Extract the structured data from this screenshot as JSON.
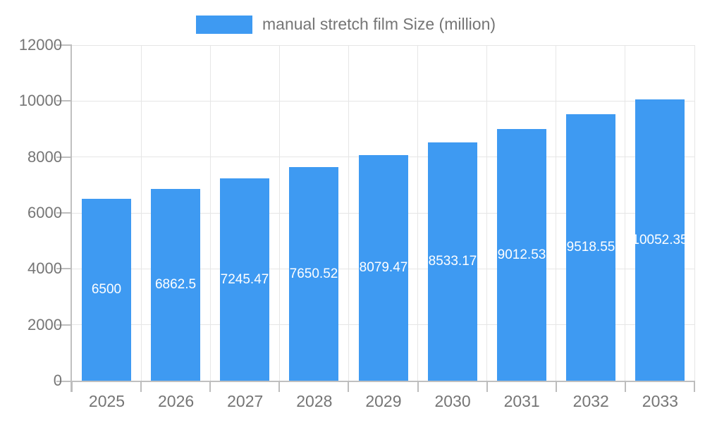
{
  "chart_data": {
    "type": "bar",
    "title": "",
    "legend_label": "manual stretch film Size (million)",
    "legend_position": "top",
    "categories": [
      "2025",
      "2026",
      "2027",
      "2028",
      "2029",
      "2030",
      "2031",
      "2032",
      "2033"
    ],
    "series": [
      {
        "name": "manual stretch film Size (million)",
        "values": [
          6500,
          6862.5,
          7245.47,
          7650.52,
          8079.47,
          8533.17,
          9012.53,
          9518.55,
          10052.35
        ]
      }
    ],
    "xlabel": "",
    "ylabel": "",
    "ylim": [
      0,
      12000
    ],
    "yticks": [
      "0",
      "2000",
      "4000",
      "6000",
      "8000",
      "10000",
      "12000"
    ],
    "grid": "horizontal and vertical light gray gridlines",
    "colors": {
      "bar": "#3e9af2",
      "bar_label_text": "#ffffff",
      "axis_text": "#757575",
      "gridline": "#e6e6e6",
      "axis_line": "#c0c0c0",
      "tick": "#bdbdbd",
      "background": "#ffffff"
    }
  }
}
